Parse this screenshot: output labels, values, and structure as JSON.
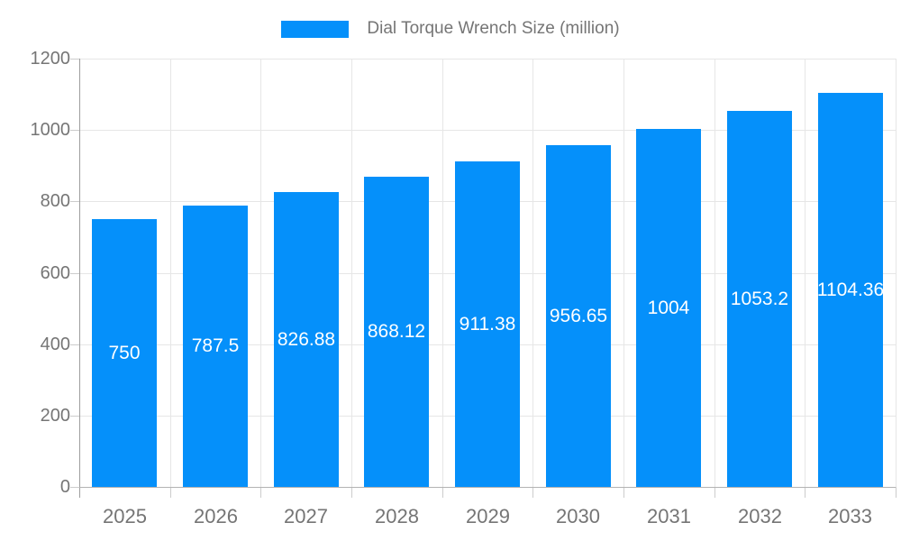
{
  "legend": {
    "label": "Dial Torque Wrench Size (million)"
  },
  "chart_data": {
    "type": "bar",
    "title": "Dial Torque Wrench Size (million)",
    "categories": [
      "2025",
      "2026",
      "2027",
      "2028",
      "2029",
      "2030",
      "2031",
      "2032",
      "2033"
    ],
    "values": [
      750,
      787.5,
      826.88,
      868.12,
      911.38,
      956.65,
      1004,
      1053.2,
      1104.36
    ],
    "bar_labels": [
      "750",
      "787.5",
      "826.88",
      "868.12",
      "911.38",
      "956.65",
      "1004",
      "1053.2",
      "1104.36"
    ],
    "xlabel": "",
    "ylabel": "",
    "ylim": [
      0,
      1200
    ],
    "y_ticks": [
      0,
      200,
      400,
      600,
      800,
      1000,
      1200
    ],
    "grid": true,
    "legend_position": "top",
    "colors": {
      "bar": "#0590fa",
      "bar_label": "#ffffff",
      "axis_text": "#757575",
      "gridline": "#e6e6e6",
      "axis_line_y": "#9e9e9e",
      "axis_line_x": "#b3b3b3",
      "tick": "#cccccc",
      "background": "#ffffff"
    }
  }
}
